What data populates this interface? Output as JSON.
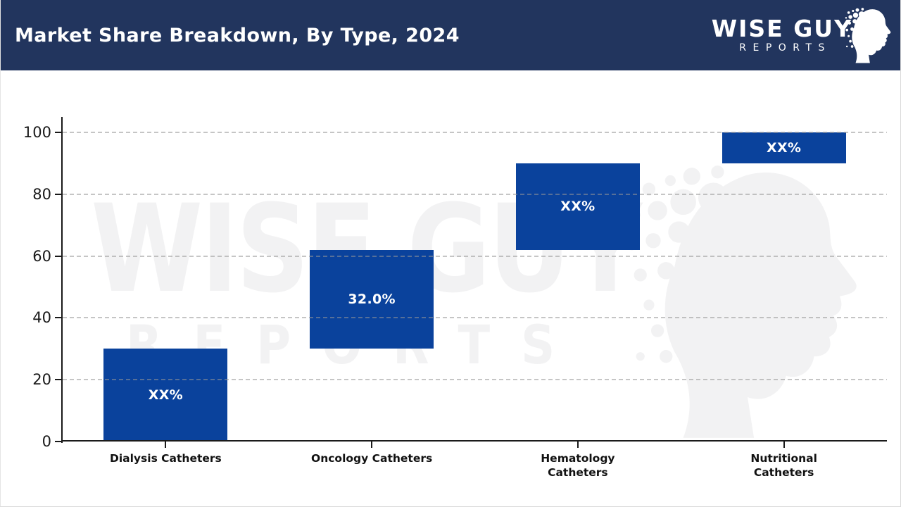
{
  "header": {
    "title": "Market Share Breakdown, By Type, 2024",
    "bg_color": "#22355e",
    "logo": {
      "line1": "WISE GUY",
      "line2": "REPORTS",
      "head_icon": "dotted-head-profile"
    }
  },
  "watermark": {
    "line1": "WISE GUY",
    "line2": "REPORTS",
    "head_icon": "dotted-head-profile"
  },
  "chart_data": {
    "type": "bar",
    "subtype": "waterfall",
    "title": "Market Share Breakdown, By Type, 2024",
    "xlabel": "",
    "ylabel": "",
    "ylim": [
      0,
      100
    ],
    "yticks": [
      0,
      20,
      40,
      60,
      80,
      100
    ],
    "grid": "horizontal-dashed-over-bars",
    "legend": "none",
    "bar_color": "#0a429c",
    "bar_label_color": "#ffffff",
    "axis_color": "#1a1a1a",
    "categories": [
      "Dialysis Catheters",
      "Oncology Catheters",
      "Hematology\nCatheters",
      "Nutritional\nCatheters"
    ],
    "segments": [
      {
        "category": "Dialysis Catheters",
        "start": 0,
        "end": 30,
        "value": 30,
        "label": "XX%"
      },
      {
        "category": "Oncology Catheters",
        "start": 30,
        "end": 62,
        "value": 32,
        "label": "32.0%"
      },
      {
        "category": "Hematology Catheters",
        "start": 62,
        "end": 90,
        "value": 28,
        "label": "XX%"
      },
      {
        "category": "Nutritional Catheters",
        "start": 90,
        "end": 100,
        "value": 10,
        "label": "XX%"
      }
    ]
  }
}
